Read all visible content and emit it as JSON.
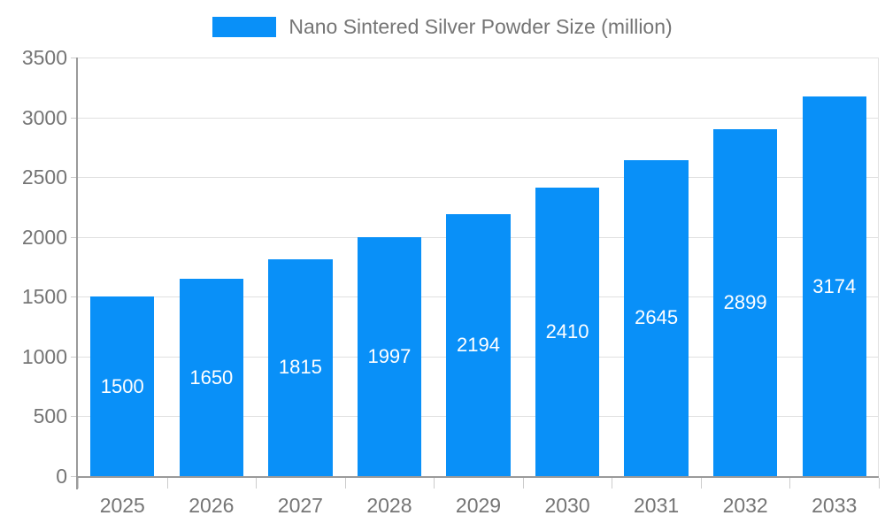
{
  "legend": {
    "label": "Nano Sintered Silver Powder Size (million)"
  },
  "chart_data": {
    "type": "bar",
    "title": "Nano Sintered Silver Powder Size (million)",
    "categories": [
      "2025",
      "2026",
      "2027",
      "2028",
      "2029",
      "2030",
      "2031",
      "2032",
      "2033"
    ],
    "values": [
      1500,
      1650,
      1815,
      1997,
      2194,
      2410,
      2645,
      2899,
      3174
    ],
    "xlabel": "",
    "ylabel": "",
    "ylim": [
      0,
      3500
    ],
    "yticks": [
      0,
      500,
      1000,
      1500,
      2000,
      2500,
      3000,
      3500
    ],
    "grid": true,
    "legend_position": "top",
    "value_labels": "inside-center"
  },
  "colors": {
    "bar": "#0990f8",
    "value_label": "#ffffff",
    "axis_line": "#9a9a9a",
    "gridline": "#e0e0e0",
    "tick": "#cccccc",
    "text": "#757575",
    "background": "#ffffff"
  }
}
